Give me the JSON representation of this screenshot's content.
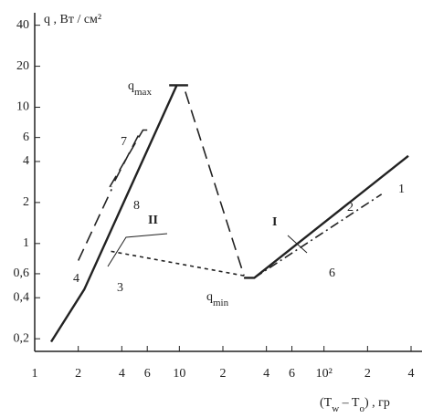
{
  "chart_data": {
    "type": "line",
    "y_label": "q ,  Вт / см²",
    "x_label": [
      {
        "text": "(T"
      },
      {
        "text": "w",
        "sub": true
      },
      {
        "text": " – T"
      },
      {
        "text": "o",
        "sub": true
      },
      {
        "text": ") , гр"
      }
    ],
    "log_x": true,
    "log_y": true,
    "grid": false,
    "xlim": [
      1,
      400
    ],
    "ylim": [
      0.18,
      45
    ],
    "xticks": [
      1,
      2,
      4,
      6,
      10,
      {
        "value": 20,
        "label": "2"
      },
      {
        "value": 40,
        "label": "4"
      },
      {
        "value": 60,
        "label": "6"
      },
      {
        "value": 100,
        "label": "10²"
      },
      {
        "value": 200,
        "label": "2"
      },
      {
        "value": 400,
        "label": "4"
      }
    ],
    "yticks": [
      {
        "value": 0.2,
        "label": "0,2"
      },
      {
        "value": 0.4,
        "label": "0,4"
      },
      {
        "value": 0.6,
        "label": "0,6"
      },
      1,
      2,
      4,
      6,
      10,
      20,
      40
    ],
    "series": [
      {
        "color": "#222",
        "dash": "solid",
        "x": [
          1.3,
          2.2,
          9.6
        ],
        "values": [
          0.19,
          0.46,
          14.5
        ]
      },
      {
        "color": "#222",
        "dash": "solid",
        "x": [
          8.5,
          11.5
        ],
        "values": [
          14.5,
          14.5
        ]
      },
      {
        "color": "#222",
        "dash": "dashed",
        "x": [
          11,
          28
        ],
        "values": [
          13,
          0.58
        ]
      },
      {
        "color": "#222",
        "dash": "dotted",
        "x": [
          28,
          3.3
        ],
        "values": [
          0.58,
          0.88
        ]
      },
      {
        "color": "#222",
        "dash": "solid",
        "x": [
          28,
          33,
          383
        ],
        "values": [
          0.56,
          0.56,
          4.4
        ]
      },
      {
        "color": "#222",
        "dash": "dashdot",
        "x": [
          33,
          250
        ],
        "values": [
          0.56,
          2.3
        ]
      },
      {
        "color": "#222",
        "dash": "dashed",
        "x": [
          2.0,
          3.4
        ],
        "values": [
          0.75,
          2.5
        ]
      },
      {
        "color": "#222",
        "dash": "dashed",
        "x": [
          3.3,
          5.6,
          6.0
        ],
        "values": [
          2.6,
          6.8,
          6.8
        ]
      },
      {
        "color": "#222",
        "dash": "dashed",
        "x": [
          5.2,
          3.4
        ],
        "values": [
          6.2,
          2.6
        ]
      }
    ],
    "annotations": [
      {
        "text": "q",
        "sub": "max"
      },
      {
        "text": "q",
        "sub": "min"
      },
      {
        "text": "I"
      },
      {
        "text": "II"
      },
      {
        "text": "1"
      },
      {
        "text": "2"
      },
      {
        "text": "3"
      },
      {
        "text": "4"
      },
      {
        "text": "6"
      },
      {
        "text": "7"
      },
      {
        "text": "8"
      }
    ]
  }
}
